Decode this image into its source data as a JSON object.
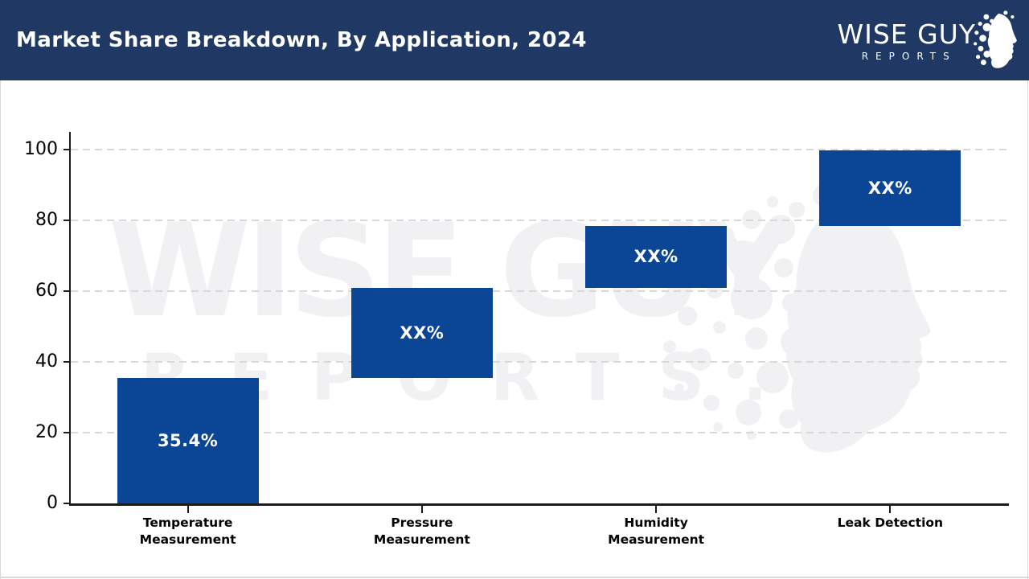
{
  "header": {
    "title": "Market Share Breakdown, By Application, 2024",
    "bg_color": "#203864",
    "logo": {
      "line1": "WISE GUY",
      "line2": "REPORTS"
    }
  },
  "watermark": {
    "line1": "WISE GUY",
    "line2": "REPORTS."
  },
  "chart_data": {
    "type": "bar",
    "variant": "stacked_waterfall",
    "title": "Market Share Breakdown, By Application, 2024",
    "categories": [
      "Temperature Measurement",
      "Pressure Measurement",
      "Humidity Measurement",
      "Leak Detection"
    ],
    "category_label_lines": [
      [
        "Temperature",
        "Measurement"
      ],
      [
        "Pressure",
        "Measurement"
      ],
      [
        "Humidity",
        "Measurement"
      ],
      [
        "Leak Detection"
      ]
    ],
    "series": [
      {
        "name": "Market share (%)",
        "segments": [
          {
            "category": "Temperature Measurement",
            "start": 0,
            "end": 35.4,
            "label": "35.4%"
          },
          {
            "category": "Pressure Measurement",
            "start": 35.4,
            "end": 61.0,
            "label": "XX%"
          },
          {
            "category": "Humidity Measurement",
            "start": 61.0,
            "end": 78.5,
            "label": "XX%"
          },
          {
            "category": "Leak Detection",
            "start": 78.5,
            "end": 99.8,
            "label": "XX%"
          }
        ]
      }
    ],
    "xlabel": "",
    "ylabel": "",
    "yticks": [
      0,
      20,
      40,
      60,
      80,
      100
    ],
    "ylim": [
      0,
      105
    ],
    "grid": {
      "axis": "y",
      "style": "dashed",
      "color": "#d9d9d9"
    },
    "legend": "none",
    "bar_color": "#0b4696",
    "bar_label_color": "#ffffff",
    "axis_color": "#1c1c1c"
  }
}
